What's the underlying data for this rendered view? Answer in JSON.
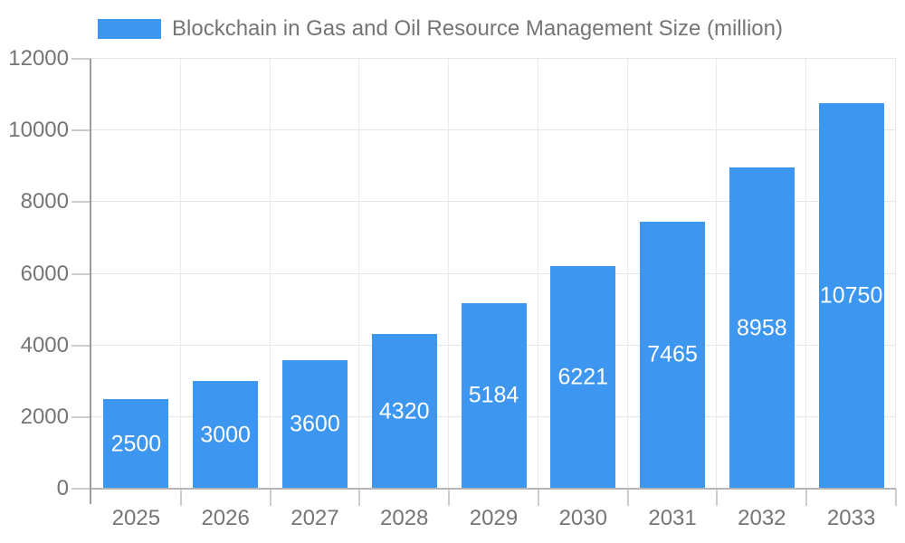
{
  "legend": {
    "label": "Blockchain in Gas and Oil Resource Management Size (million)",
    "swatch_color": "#3D96F0"
  },
  "chart_data": {
    "type": "bar",
    "title": "Blockchain in Gas and Oil Resource Management Size (million)",
    "categories": [
      "2025",
      "2026",
      "2027",
      "2028",
      "2029",
      "2030",
      "2031",
      "2032",
      "2033"
    ],
    "values": [
      2500,
      3000,
      3600,
      4320,
      5184,
      6221,
      7465,
      8958,
      10750
    ],
    "series": [
      {
        "name": "Blockchain in Gas and Oil Resource Management Size (million)",
        "values": [
          2500,
          3000,
          3600,
          4320,
          5184,
          6221,
          7465,
          8958,
          10750
        ]
      }
    ],
    "xlabel": "",
    "ylabel": "",
    "ylim": [
      0,
      12000
    ],
    "yticks": [
      0,
      2000,
      4000,
      6000,
      8000,
      10000,
      12000
    ],
    "grid": true,
    "legend_position": "top",
    "value_labels": "inside-center",
    "colors": {
      "bar": "#3D96F0",
      "value_label": "#ffffff",
      "axis_text": "#757575",
      "grid_line": "#e6e6e6",
      "axis_line": "#9c9c9c"
    }
  }
}
